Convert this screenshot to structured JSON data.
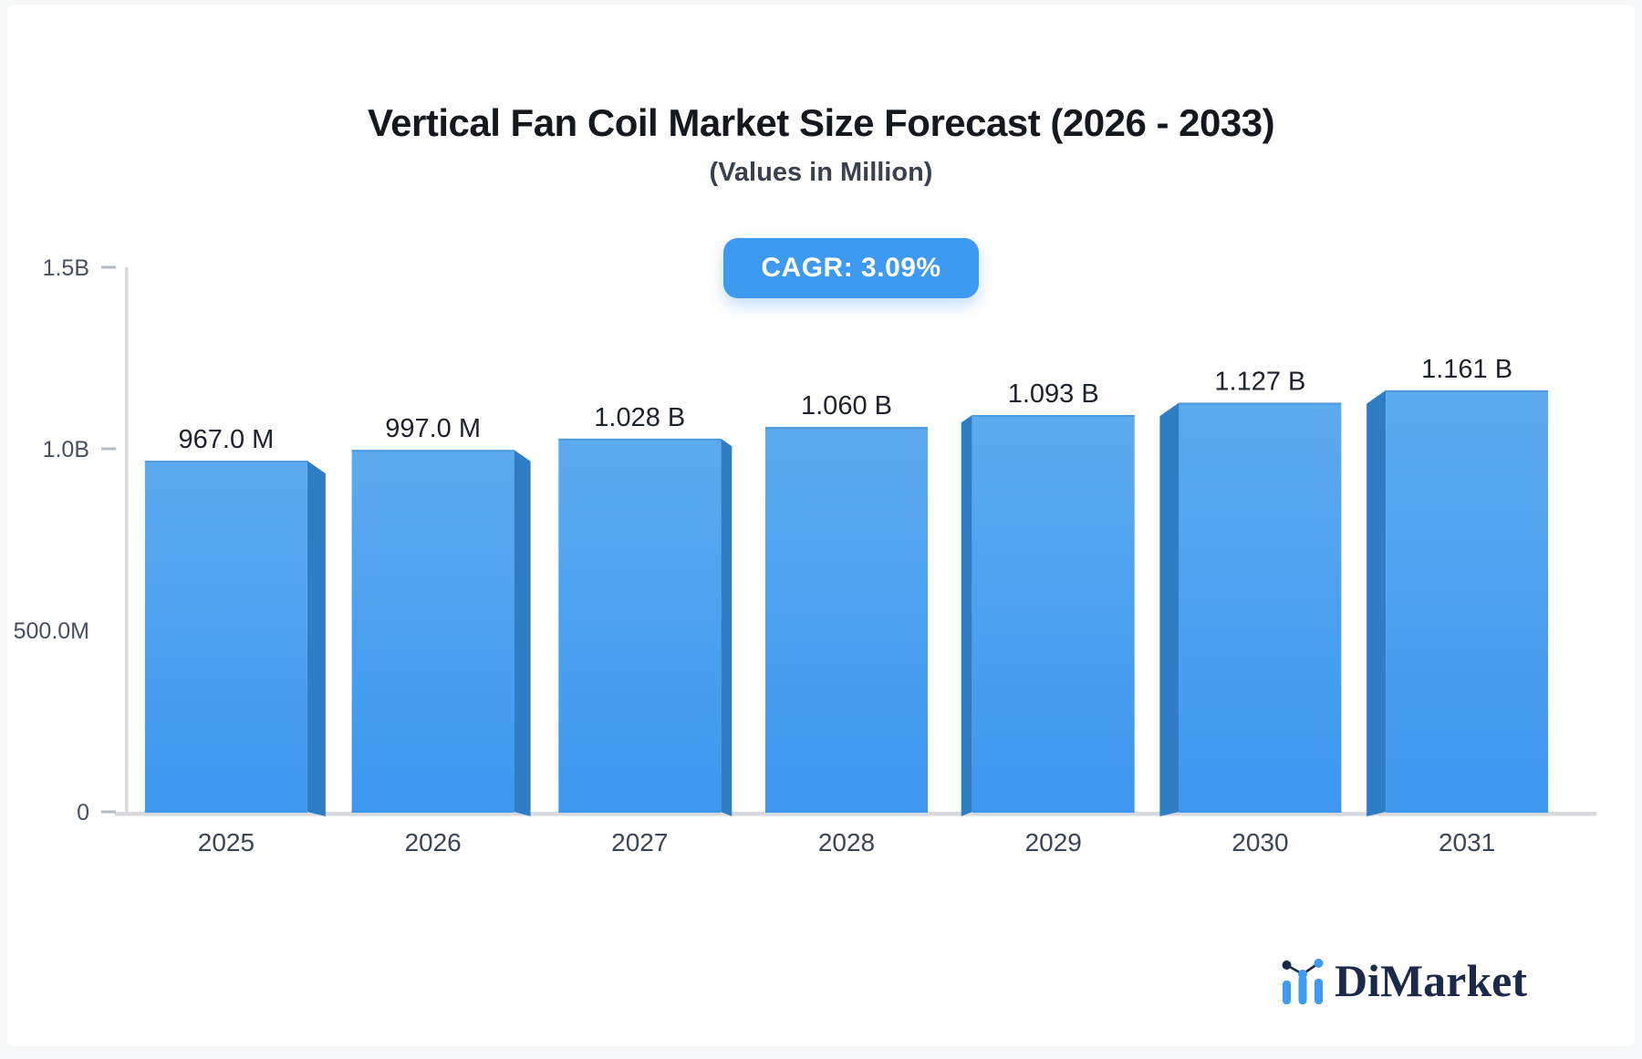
{
  "title": "Vertical Fan Coil Market Size Forecast (2026 - 2033)",
  "subtitle": "(Values in Million)",
  "badge": {
    "label": "CAGR: 3.09%",
    "bg_color": "#3E99F1",
    "text_color": "#ffffff"
  },
  "chart_data": {
    "type": "bar",
    "title": "Vertical Fan Coil Market Size Forecast (2026 - 2033)",
    "subtitle": "(Values in Million)",
    "unit": "Million USD",
    "categories": [
      "2025",
      "2026",
      "2027",
      "2028",
      "2029",
      "2030",
      "2031"
    ],
    "values": [
      967,
      997,
      1028,
      1060,
      1093,
      1127,
      1161
    ],
    "value_labels": [
      "967.0 M",
      "997.0 M",
      "1.028 B",
      "1.060 B",
      "1.093 B",
      "1.127 B",
      "1.161 B"
    ],
    "ylim": [
      0,
      1500
    ],
    "y_ticks": [
      {
        "label": "1.5B",
        "value": 1500,
        "tick": true
      },
      {
        "label": "1.0B",
        "value": 1000,
        "tick": true
      },
      {
        "label": "500.0M",
        "value": 500,
        "tick": false
      },
      {
        "label": "0",
        "value": 0,
        "tick": true
      }
    ],
    "grid": false,
    "legend": "none",
    "colors": {
      "bar_top": "#5CABEF",
      "bar_bottom": "#3D97F0",
      "bar_side": "#2F7DC5",
      "bar_edge": "#3F8CD8",
      "axis_line": "#d7dadf",
      "tick_mark": "#b6bcc5",
      "y_label": "#46505f",
      "x_label": "#3a4555",
      "value_label": "#1c222e"
    }
  },
  "logo": {
    "text": "DiMarket",
    "icon": "mini-bar-chart-logo-icon",
    "text_color": "#1b2a4a",
    "icon_blue": "#3E9AF2",
    "icon_dark": "#1b2a4a"
  }
}
